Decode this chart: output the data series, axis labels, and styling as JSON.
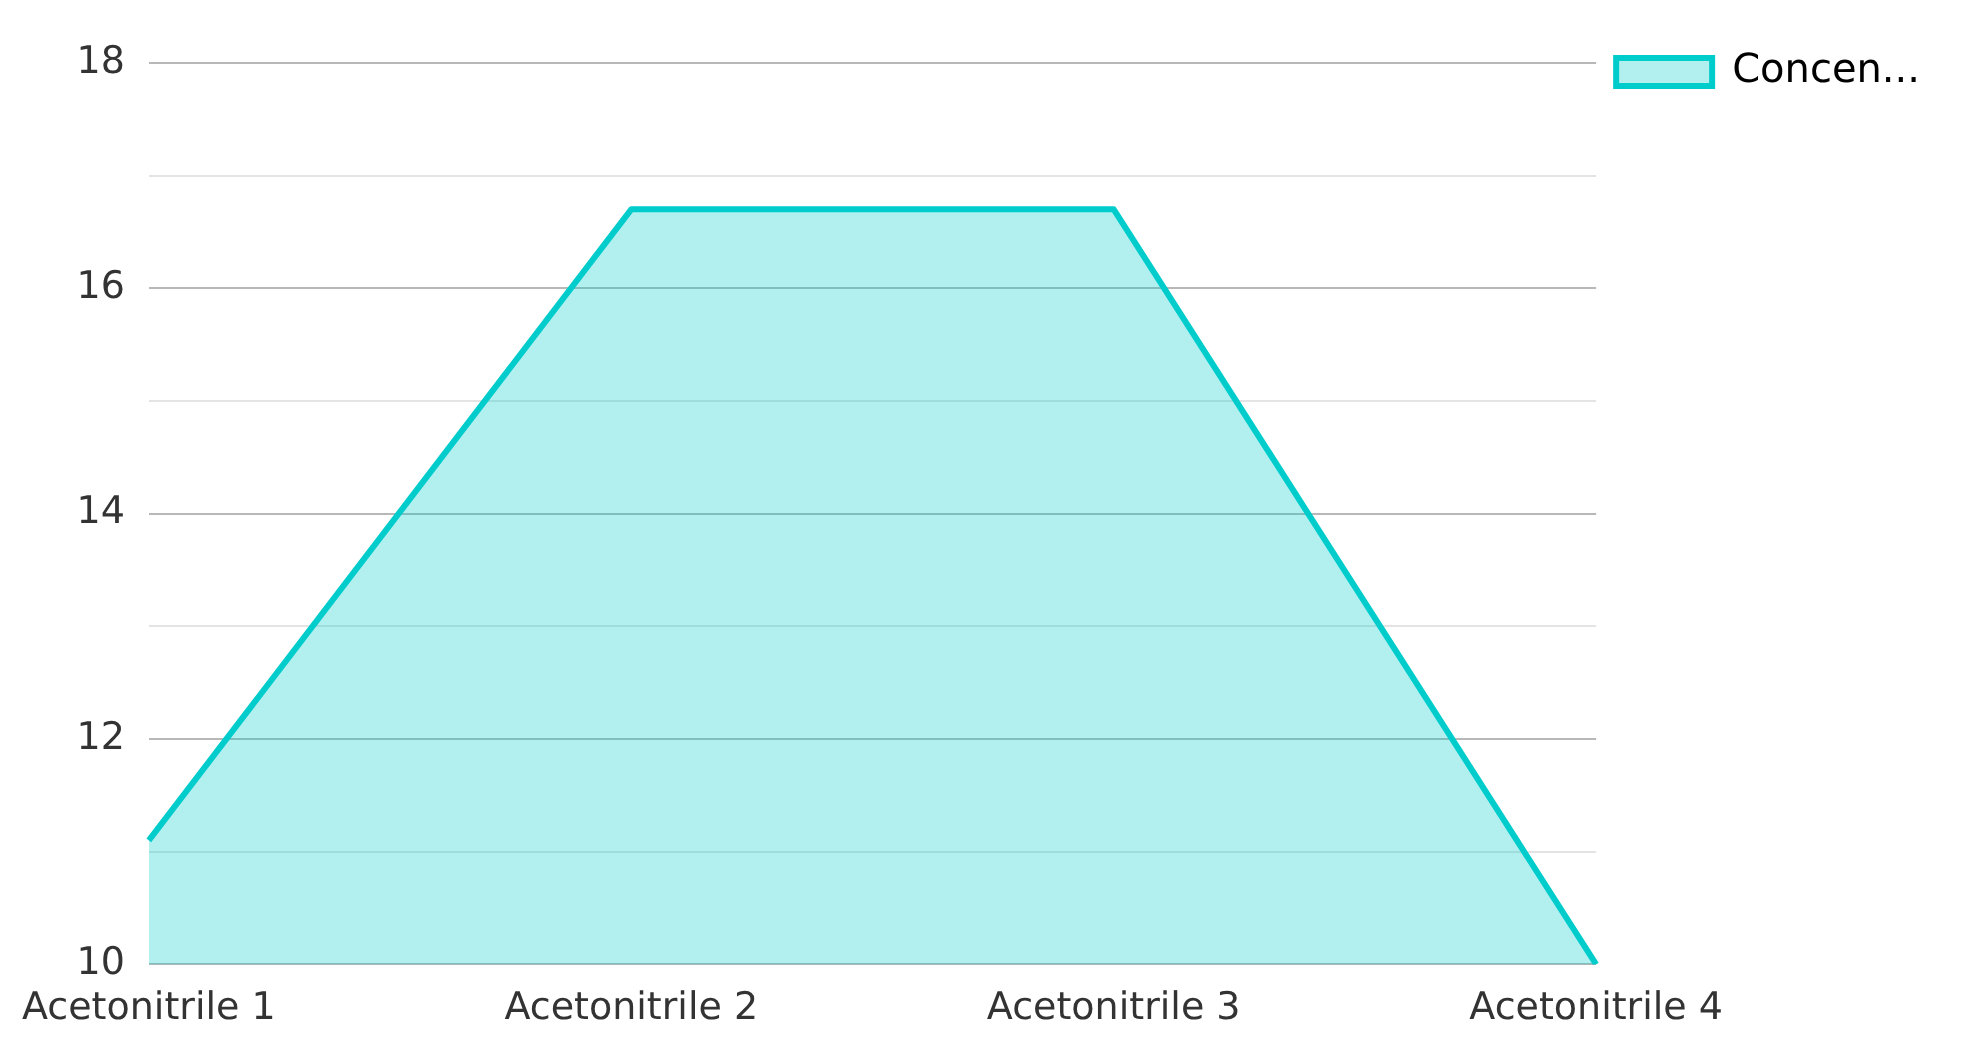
{
  "chart_data": {
    "type": "area",
    "categories": [
      "Acetonitrile 1",
      "Acetonitrile 2",
      "Acetonitrile 3",
      "Acetonitrile 4"
    ],
    "series": [
      {
        "name": "Concen...",
        "color": "#00cccc",
        "values": [
          11.1,
          16.7,
          16.7,
          10
        ]
      }
    ],
    "ylim": [
      10,
      18
    ],
    "yticks": [
      10,
      {
        "value": 11,
        "label": null
      },
      12,
      {
        "value": 13,
        "label": null
      },
      14,
      {
        "value": 15,
        "label": null
      },
      16,
      {
        "value": 17,
        "label": null
      },
      18
    ],
    "grid": "y",
    "legend": "top right"
  }
}
